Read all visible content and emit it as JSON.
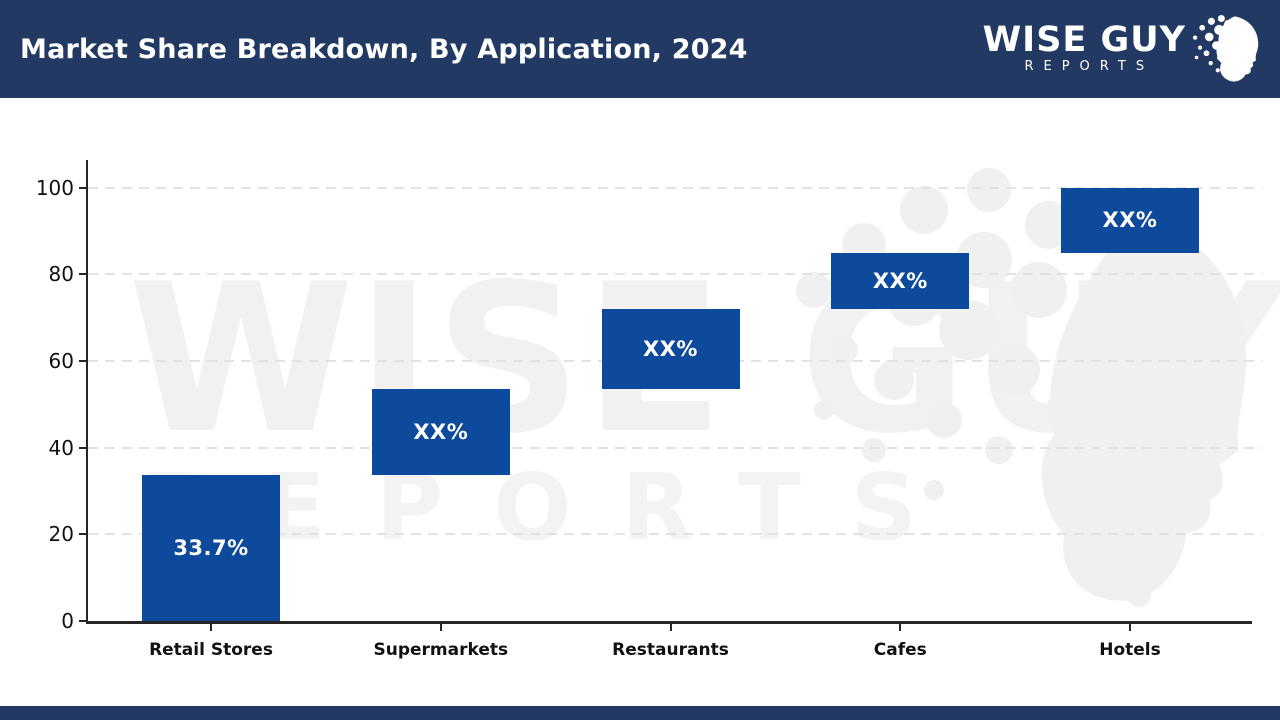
{
  "header": {
    "title": "Market Share Breakdown, By Application, 2024",
    "bg_color": "#223a63",
    "logo": {
      "line1": "WISE GUY",
      "line2": "REPORTS"
    }
  },
  "watermark": {
    "line1": "WISE GUY",
    "line2": "REPORTS"
  },
  "footer": {
    "bg_color": "#223a63"
  },
  "chart_data": {
    "type": "bar",
    "subtype": "waterfall",
    "title": "Market Share Breakdown, By Application, 2024",
    "categories": [
      "Retail Stores",
      "Supermarkets",
      "Restaurants",
      "Cafes",
      "Hotels"
    ],
    "bars": [
      {
        "category": "Retail Stores",
        "start": 0,
        "end": 33.7,
        "label": "33.7%"
      },
      {
        "category": "Supermarkets",
        "start": 33.7,
        "end": 53.5,
        "label": "XX%"
      },
      {
        "category": "Restaurants",
        "start": 53.5,
        "end": 72,
        "label": "XX%"
      },
      {
        "category": "Cafes",
        "start": 72,
        "end": 85,
        "label": "XX%"
      },
      {
        "category": "Hotels",
        "start": 85,
        "end": 100,
        "label": "XX%"
      }
    ],
    "y_ticks": [
      0,
      20,
      40,
      60,
      80,
      100
    ],
    "ylim": [
      0,
      105
    ],
    "xlabel": "",
    "ylabel": "",
    "bar_color": "#0d4a9c",
    "grid": "dashed-horizontal",
    "legend": "none"
  }
}
